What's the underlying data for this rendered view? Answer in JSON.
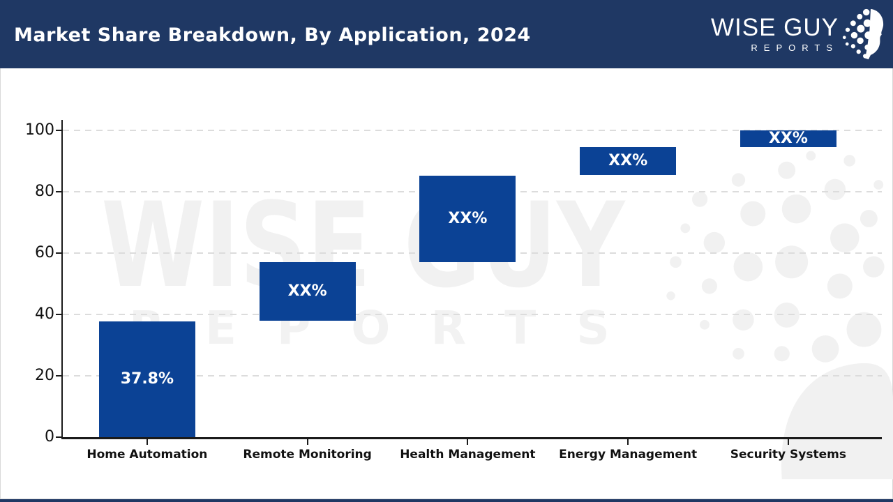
{
  "header": {
    "title": "Market Share Breakdown, By Application, 2024",
    "logo_line1": "WISE GUY",
    "logo_line2": "REPORTS"
  },
  "watermark": {
    "line1": "WISE GUY",
    "line2": "REPORTS"
  },
  "chart_data": {
    "type": "bar",
    "subtype": "waterfall",
    "title": "Market Share Breakdown, By Application, 2024",
    "categories": [
      "Home Automation",
      "Remote Monitoring",
      "Health Management",
      "Energy Management",
      "Security Systems"
    ],
    "segments": [
      {
        "category": "Home Automation",
        "start": 0,
        "end": 37.8,
        "label": "37.8%"
      },
      {
        "category": "Remote Monitoring",
        "start": 38,
        "end": 57,
        "label": "XX%"
      },
      {
        "category": "Health Management",
        "start": 57,
        "end": 85.2,
        "label": "XX%"
      },
      {
        "category": "Energy Management",
        "start": 85.4,
        "end": 94.5,
        "label": "XX%"
      },
      {
        "category": "Security Systems",
        "start": 94.5,
        "end": 100,
        "label": "XX%"
      }
    ],
    "ylim": [
      0,
      100
    ],
    "yticks": [
      0,
      20,
      40,
      60,
      80,
      100
    ],
    "grid": "horizontal-dashed",
    "legend": "none",
    "colors": {
      "bar": "#0b4295",
      "bar_label": "#ffffff",
      "axis": "#1a1a1a",
      "grid": "#dcdcdc",
      "header_bg": "#1f3864",
      "header_text": "#ffffff",
      "watermark": "#f1f1f1"
    }
  }
}
